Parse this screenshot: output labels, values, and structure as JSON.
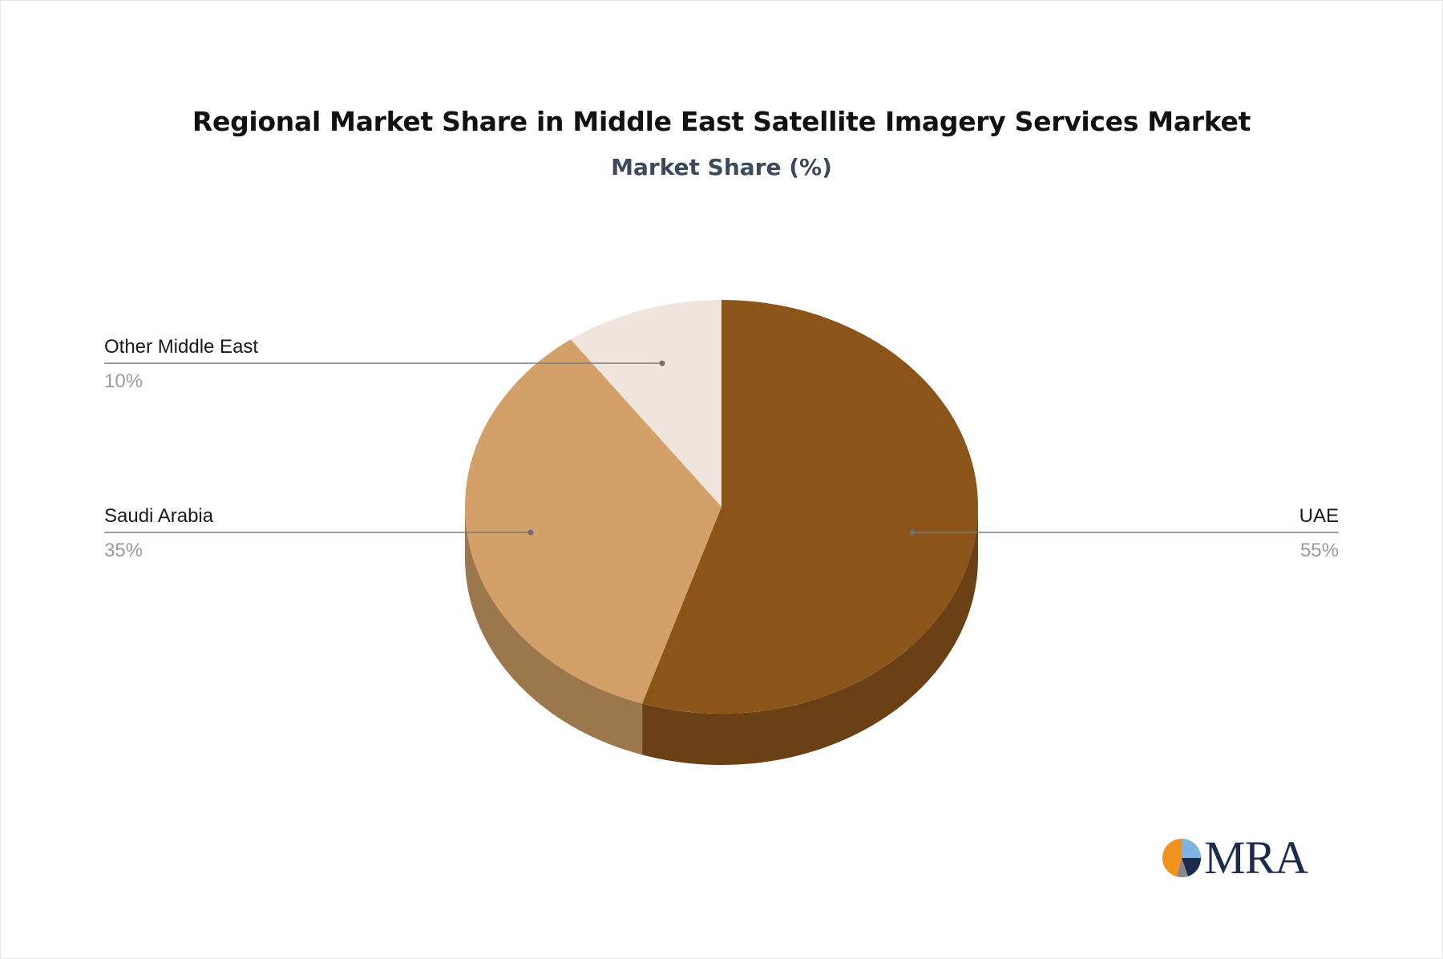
{
  "chart_data": {
    "type": "pie",
    "title": "Regional Market Share in Middle East Satellite Imagery Services Market",
    "subtitle": "Market Share (%)",
    "slices": [
      {
        "label": "UAE",
        "value": 55,
        "value_label": "55%",
        "color": "#8b5419",
        "side_color": "#6a4014"
      },
      {
        "label": "Saudi Arabia",
        "value": 35,
        "value_label": "35%",
        "color": "#d2a068",
        "side_color": "#9b784c"
      },
      {
        "label": "Other Middle East",
        "value": 10,
        "value_label": "10%",
        "color": "#efe5dd",
        "side_color": "#c9bfb6"
      }
    ],
    "style": "3d-pie"
  },
  "logo": {
    "text": "MRA"
  }
}
